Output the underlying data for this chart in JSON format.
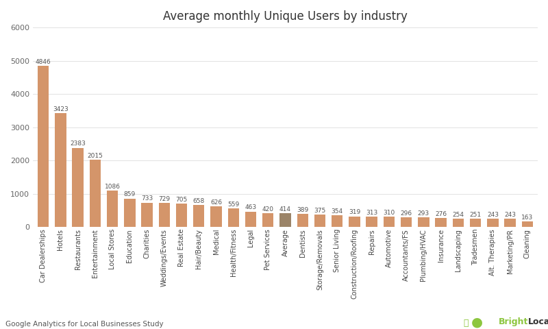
{
  "title": "Average monthly Unique Users by industry",
  "categories": [
    "Car Dealerships",
    "Hotels",
    "Restaurants",
    "Entertainment",
    "Local Stores",
    "Education",
    "Charities",
    "Weddings/Events",
    "Real Estate",
    "Hair/Beauty",
    "Medical",
    "Health/Fitness",
    "Legal",
    "Pet Services",
    "Average",
    "Dentists",
    "Storage/Removals",
    "Senior Living",
    "Construction/Roofing",
    "Repairs",
    "Automotive",
    "Accountants/FS",
    "Plumbing/HVAC",
    "Insurance",
    "Landscaping",
    "Tradesmen",
    "Alt. Therapies",
    "Marketing/PR",
    "Cleaning"
  ],
  "values": [
    4846,
    3423,
    2383,
    2015,
    1086,
    859,
    733,
    729,
    705,
    658,
    626,
    559,
    463,
    420,
    414,
    389,
    375,
    354,
    319,
    313,
    310,
    296,
    293,
    276,
    254,
    251,
    243,
    243,
    163
  ],
  "bar_color_default": "#D4956A",
  "bar_color_average": "#9B8468",
  "ylim": [
    0,
    6000
  ],
  "yticks": [
    0,
    1000,
    2000,
    3000,
    4000,
    5000,
    6000
  ],
  "footnote": "Google Analytics for Local Businesses Study",
  "background_color": "#FFFFFF",
  "title_fontsize": 12,
  "label_fontsize": 6.5,
  "tick_fontsize": 8,
  "xtick_fontsize": 7
}
